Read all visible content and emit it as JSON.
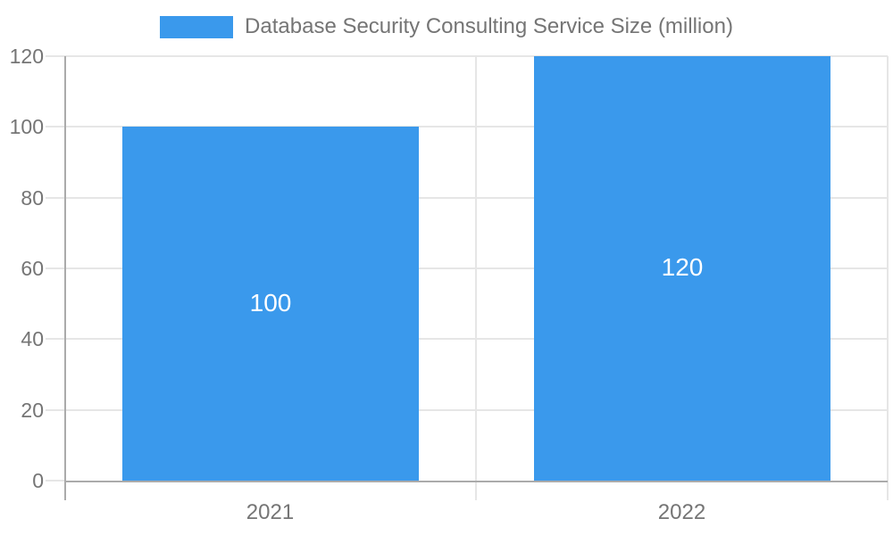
{
  "chart_data": {
    "type": "bar",
    "title": "Database Security Consulting Service Size (million)",
    "series_name": "Database Security Consulting Service Size (million)",
    "categories": [
      "2021",
      "2022"
    ],
    "values": [
      100,
      120
    ],
    "data_labels": [
      "100",
      "120"
    ],
    "yticks": [
      0,
      20,
      40,
      60,
      80,
      100,
      120
    ],
    "ytick_labels": [
      "0",
      "20",
      "40",
      "60",
      "80",
      "100",
      "120"
    ],
    "ylim": [
      0,
      120
    ],
    "grid": true,
    "legend_position": "top",
    "colors": {
      "bar": "#3A99EC",
      "grid": "#E6E6E6",
      "axis": "#ABABAB",
      "text": "#757575",
      "data_label": "#FFFFFF",
      "background": "#FFFFFF"
    }
  }
}
